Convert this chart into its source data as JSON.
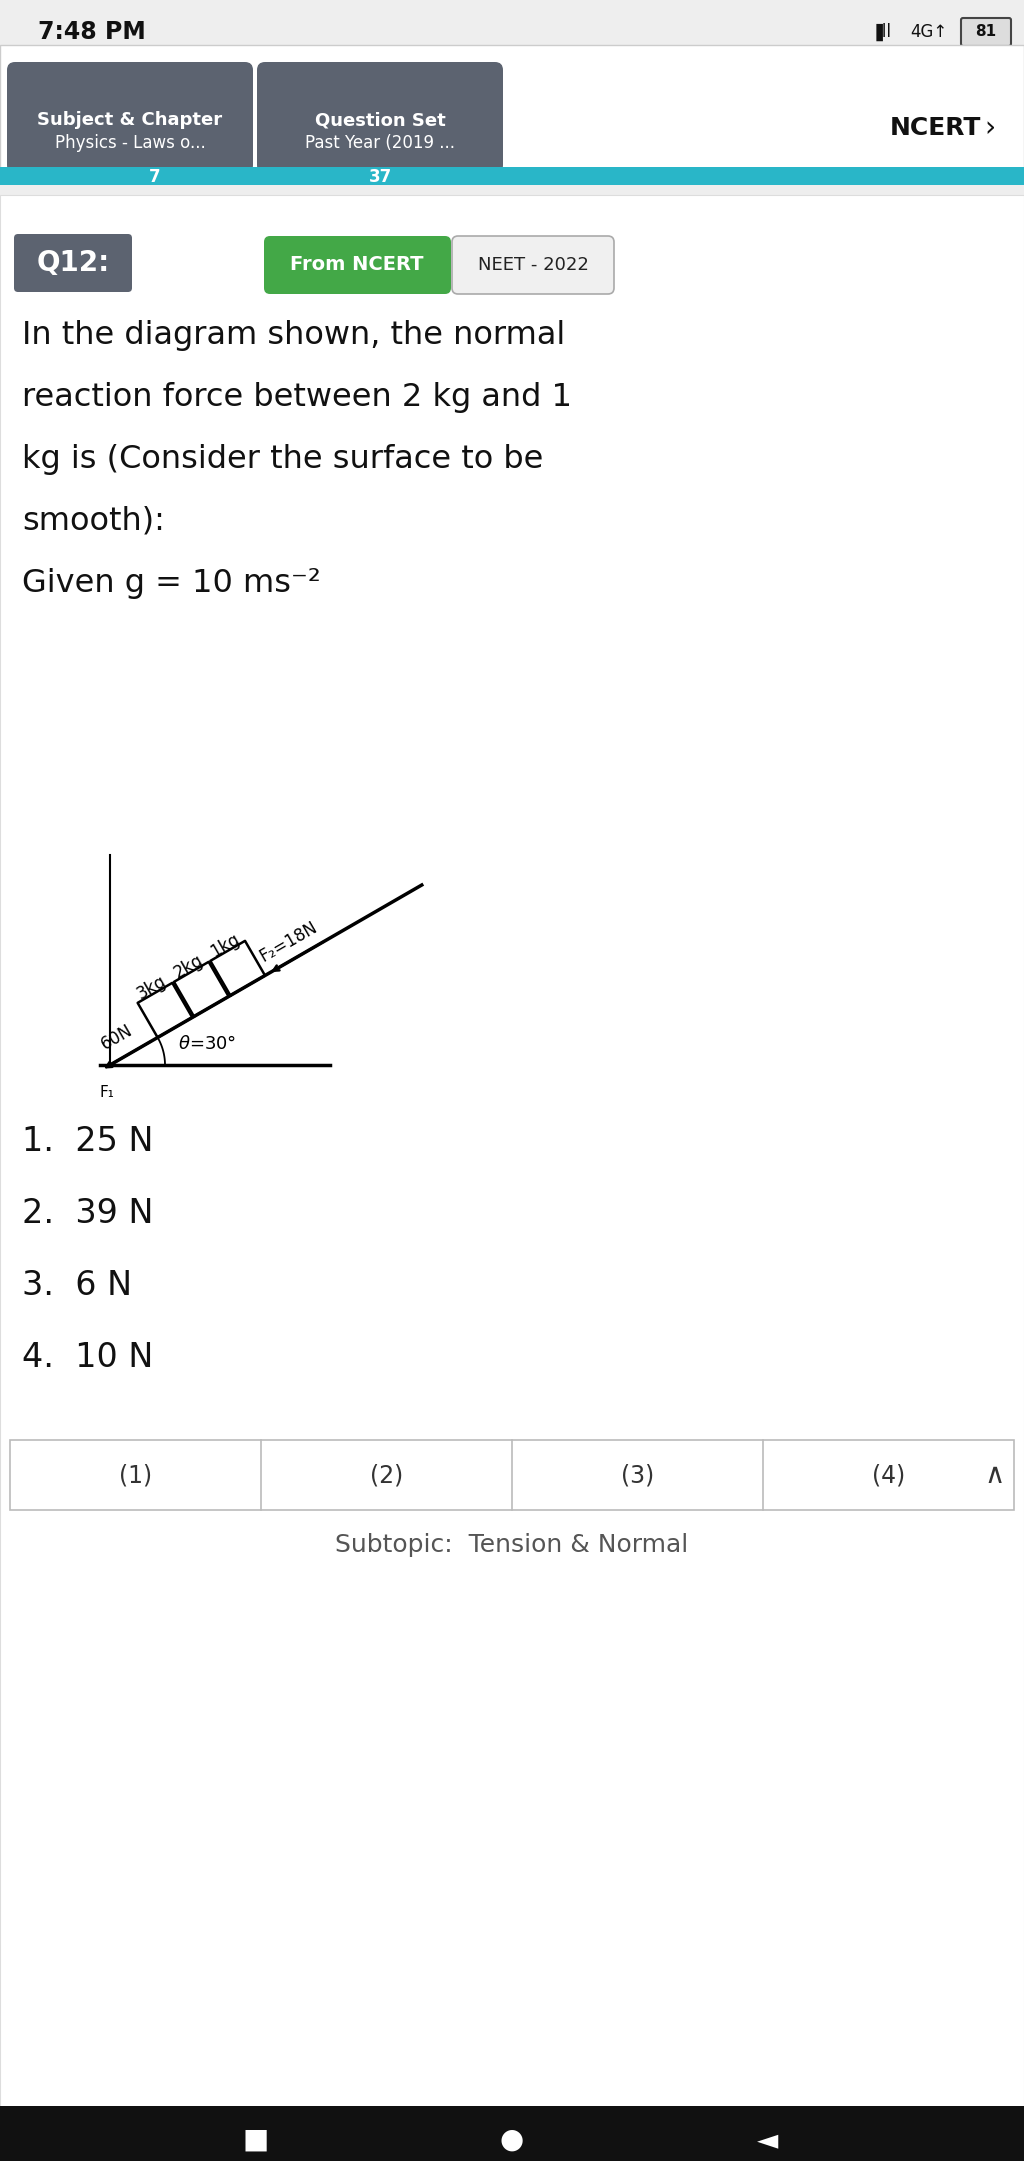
{
  "time": "7:48 PM",
  "tab1_line1": "Subject & Chapter",
  "tab1_line2": "Physics - Laws o...",
  "tab2_line1": "Question Set",
  "tab2_line2": "Past Year (2019 ...",
  "tab3_text": "NCERT",
  "q_label": "Q12:",
  "from_ncert": "From NCERT",
  "neet_label": "NEET - 2022",
  "options": [
    "1.  25 N",
    "2.  39 N",
    "3.  6 N",
    "4.  10 N"
  ],
  "subtopic": "Subtopic:  Tension & Normal",
  "bg_color": "#eeeeee",
  "white_bg": "#ffffff",
  "header_bg": "#5c6370",
  "blue_bar_color": "#29b6c8",
  "green_pill_color": "#43a847",
  "q_label_bg": "#5c6370",
  "question_lines": [
    "In the diagram shown, the normal",
    "reaction force between 2 kg and 1",
    "kg is (Consider the surface to be",
    "smooth):",
    "Given g = 10 ms⁻²"
  ]
}
